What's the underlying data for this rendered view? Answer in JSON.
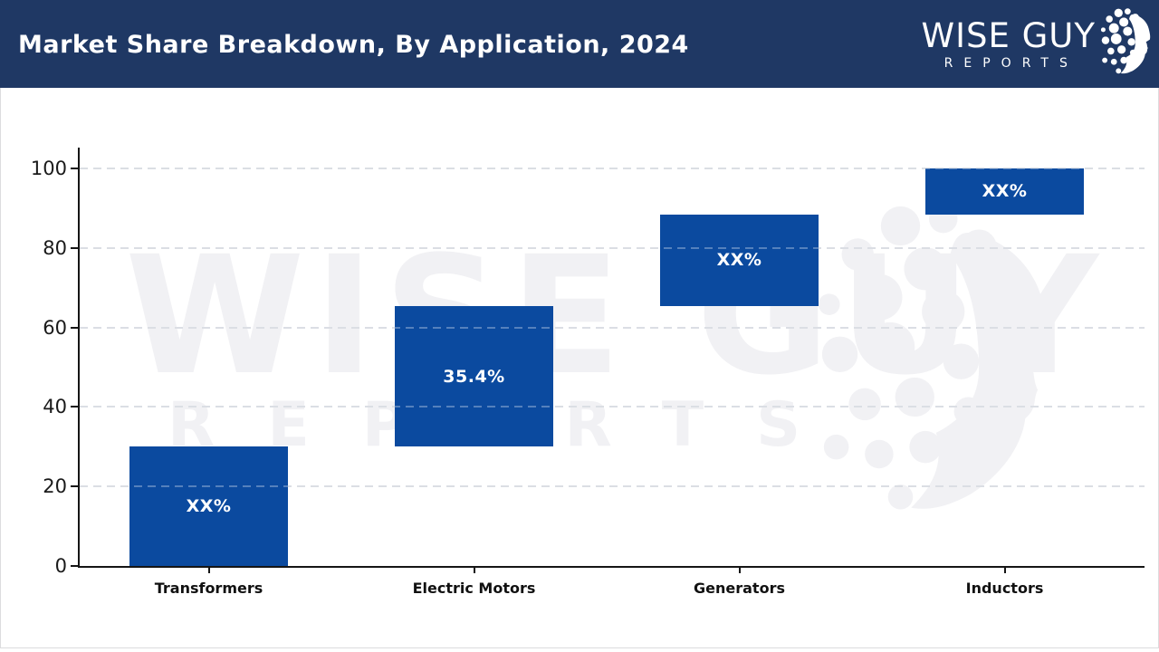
{
  "header": {
    "title": "Market Share Breakdown, By Application, 2024",
    "logo": {
      "line1": "WISE GUY",
      "line2": "REPORTS"
    }
  },
  "watermark": {
    "line1": "WISE GUY",
    "line2": "REPORTS"
  },
  "colors": {
    "header_bg": "#1f3864",
    "bar_fill": "#0b4a9f",
    "bar_label": "#ffffff",
    "grid_line": "#ccd0d8",
    "axis_line": "#151515",
    "watermark": "#f1f1f4",
    "title_text": "#ffffff"
  },
  "chart_data": {
    "type": "bar",
    "subtype": "floating-waterfall",
    "title": "Market Share Breakdown, By Application, 2024",
    "categories": [
      "Transformers",
      "Electric Motors",
      "Generators",
      "Inductors"
    ],
    "series": [
      {
        "name": "Market Share (%)",
        "segments": [
          {
            "category": "Transformers",
            "start": 0,
            "end": 30,
            "label": "XX%"
          },
          {
            "category": "Electric Motors",
            "start": 30,
            "end": 65.4,
            "label": "35.4%"
          },
          {
            "category": "Generators",
            "start": 65.4,
            "end": 88.4,
            "label": "XX%"
          },
          {
            "category": "Inductors",
            "start": 88.4,
            "end": 100,
            "label": "XX%"
          }
        ]
      }
    ],
    "xlabel": "",
    "ylabel": "",
    "ylim": [
      0,
      100
    ],
    "yticks": [
      0,
      20,
      40,
      60,
      80,
      100
    ],
    "grid": "horizontal-dashed",
    "legend": "none"
  }
}
